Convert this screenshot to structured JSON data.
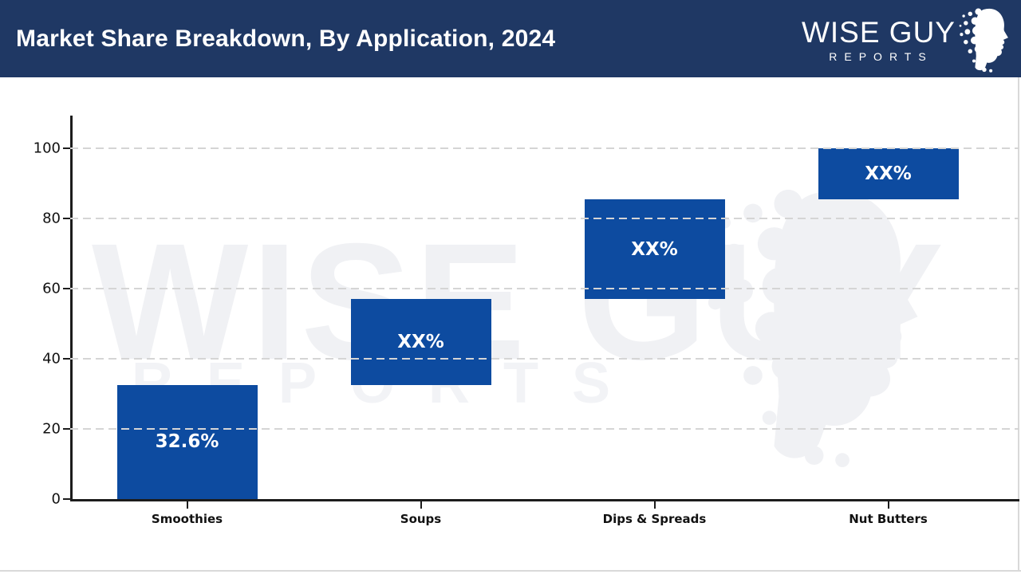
{
  "header": {
    "title": "Market Share Breakdown, By Application, 2024",
    "logo": {
      "name": "WISE GUY",
      "tagline": "REPORTS"
    }
  },
  "watermark": {
    "name": "WISE GUY",
    "tagline": "REPORTS"
  },
  "chart_data": {
    "type": "bar",
    "subtype": "waterfall",
    "title": "Market Share Breakdown, By Application, 2024",
    "categories": [
      "Smoothies",
      "Soups",
      "Dips & Spreads",
      "Nut Butters"
    ],
    "bars": [
      {
        "category": "Smoothies",
        "start": 0,
        "end": 32.6,
        "label": "32.6%"
      },
      {
        "category": "Soups",
        "start": 32.6,
        "end": 57,
        "label": "XX%"
      },
      {
        "category": "Dips & Spreads",
        "start": 57,
        "end": 85.5,
        "label": "XX%"
      },
      {
        "category": "Nut Butters",
        "start": 85.5,
        "end": 100,
        "label": "XX%"
      }
    ],
    "y_ticks": [
      0,
      20,
      40,
      60,
      80,
      100
    ],
    "ylim": [
      0,
      107
    ],
    "xlabel": "",
    "ylabel": "",
    "grid": "dashed-horizontal-over-bars",
    "legend": "none",
    "colors": {
      "header_bg": "#1f3864",
      "bar": "#0d4ba0",
      "bar_label": "#ffffff",
      "axis": "#1c1c1c",
      "grid": "#d5d5d5",
      "watermark": "#f0f1f4"
    }
  }
}
